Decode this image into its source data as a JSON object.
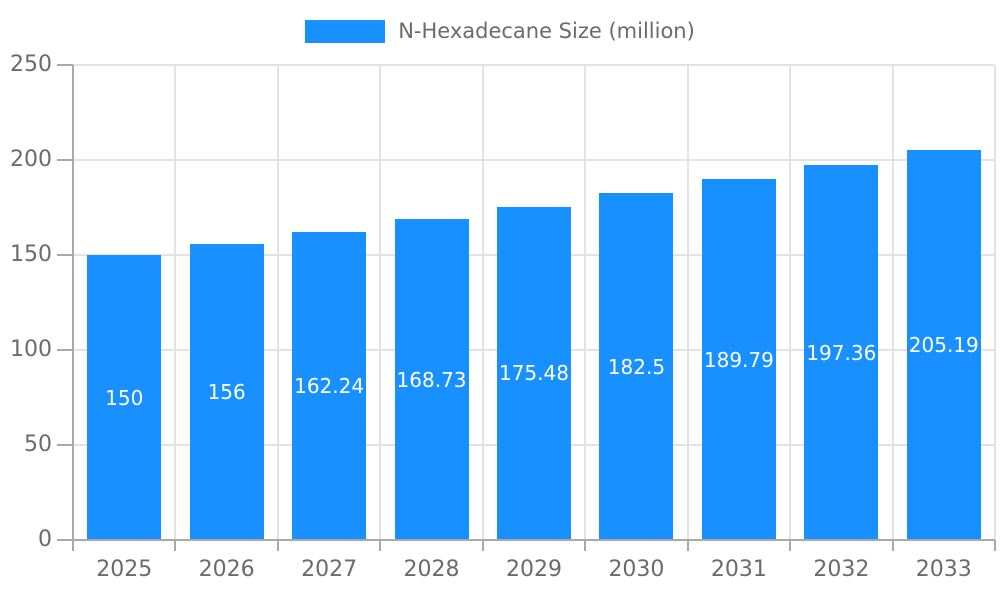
{
  "chart_data": {
    "type": "bar",
    "title": "N-Hexadecane Size (million)",
    "categories": [
      "2025",
      "2026",
      "2027",
      "2028",
      "2029",
      "2030",
      "2031",
      "2032",
      "2033"
    ],
    "values": [
      150,
      156,
      162.24,
      168.73,
      175.48,
      182.5,
      189.79,
      197.36,
      205.19
    ],
    "value_labels": [
      "150",
      "156",
      "162.24",
      "168.73",
      "175.48",
      "182.5",
      "189.79",
      "197.36",
      "205.19"
    ],
    "xlabel": "",
    "ylabel": "",
    "ylim": [
      0,
      250
    ],
    "yticks": [
      0,
      50,
      100,
      150,
      200,
      250
    ],
    "ytick_labels": [
      "0",
      "50",
      "100",
      "150",
      "200",
      "250"
    ],
    "grid": true,
    "legend_position": "top",
    "bar_color": "#1890ff",
    "value_label_color": "#ffffff",
    "axis_text_color": "#6b6b6b",
    "grid_color": "#e3e3e3",
    "axis_line_color": "#a9a9a9"
  },
  "legend": {
    "swatch_color": "#1890ff",
    "label": "N-Hexadecane Size (million)"
  }
}
